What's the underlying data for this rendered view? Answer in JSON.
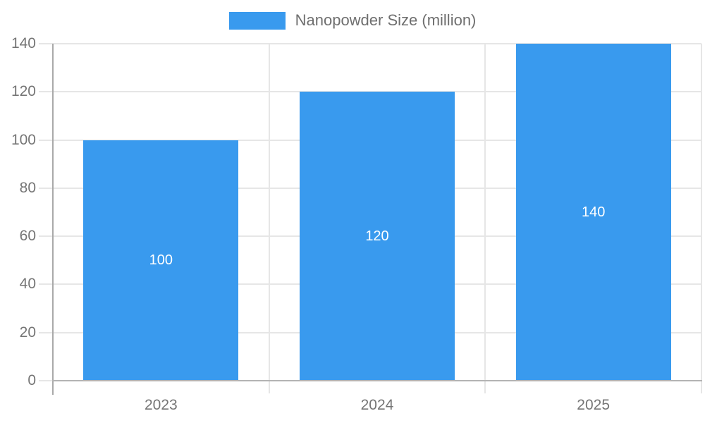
{
  "legend": {
    "label": "Nanopowder Size (million)"
  },
  "colors": {
    "bar": "#399AEE",
    "grid": "#e6e6e6",
    "axis_line": "#a9a9a9",
    "baseline": "#b3b3b3",
    "tick_label": "#757575",
    "legend_text": "#6f6f6f",
    "data_label": "#ffffff"
  },
  "chart_data": {
    "type": "bar",
    "title": "",
    "series_name": "Nanopowder Size (million)",
    "categories": [
      "2023",
      "2024",
      "2025"
    ],
    "values": [
      100,
      120,
      140
    ],
    "data_labels": [
      "100",
      "120",
      "140"
    ],
    "xlabel": "",
    "ylabel": "",
    "ylim": [
      0,
      140
    ],
    "ytick_step": 20,
    "yticks": [
      0,
      20,
      40,
      60,
      80,
      100,
      120,
      140
    ],
    "grid": "on",
    "grid_style": "horizontal gridlines with left ticks; vertical lines at category boundaries extending below axis",
    "legend_position": "top-center",
    "bar_label_position": "center-inside"
  }
}
